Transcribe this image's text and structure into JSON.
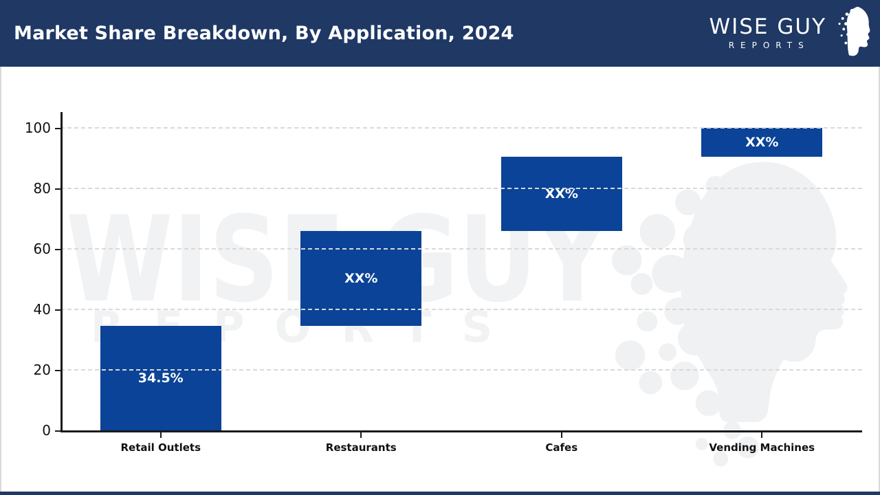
{
  "header": {
    "title": "Market Share Breakdown, By Application, 2024"
  },
  "logo": {
    "name": "WISE GUY",
    "tagline": "REPORTS"
  },
  "watermark": {
    "line1": "WISE GUY",
    "line2": "REPORTS"
  },
  "colors": {
    "header_bg": "#1f3864",
    "bar": "#0a4397",
    "bar_label": "#ffffff",
    "gridline": "#d9d9d9",
    "axis": "#1a1a1a",
    "watermark": "#f1f2f4"
  },
  "chart_data": {
    "type": "bar",
    "subtype": "floating-waterfall",
    "title": "Market Share Breakdown, By Application, 2024",
    "categories": [
      "Retail Outlets",
      "Restaurants",
      "Cafes",
      "Vending Machines"
    ],
    "segments": [
      {
        "category": "Retail Outlets",
        "start": 0,
        "end": 34.5,
        "label": "34.5%"
      },
      {
        "category": "Restaurants",
        "start": 34.5,
        "end": 66,
        "label": "XX%"
      },
      {
        "category": "Cafes",
        "start": 66,
        "end": 90.5,
        "label": "XX%"
      },
      {
        "category": "Vending Machines",
        "start": 90.5,
        "end": 100,
        "label": "XX%"
      }
    ],
    "yticks": [
      0,
      20,
      40,
      60,
      80,
      100
    ],
    "ylim": [
      0,
      105
    ],
    "grid": "horizontal-dashed",
    "legend": "none",
    "xlabel": "",
    "ylabel": ""
  }
}
